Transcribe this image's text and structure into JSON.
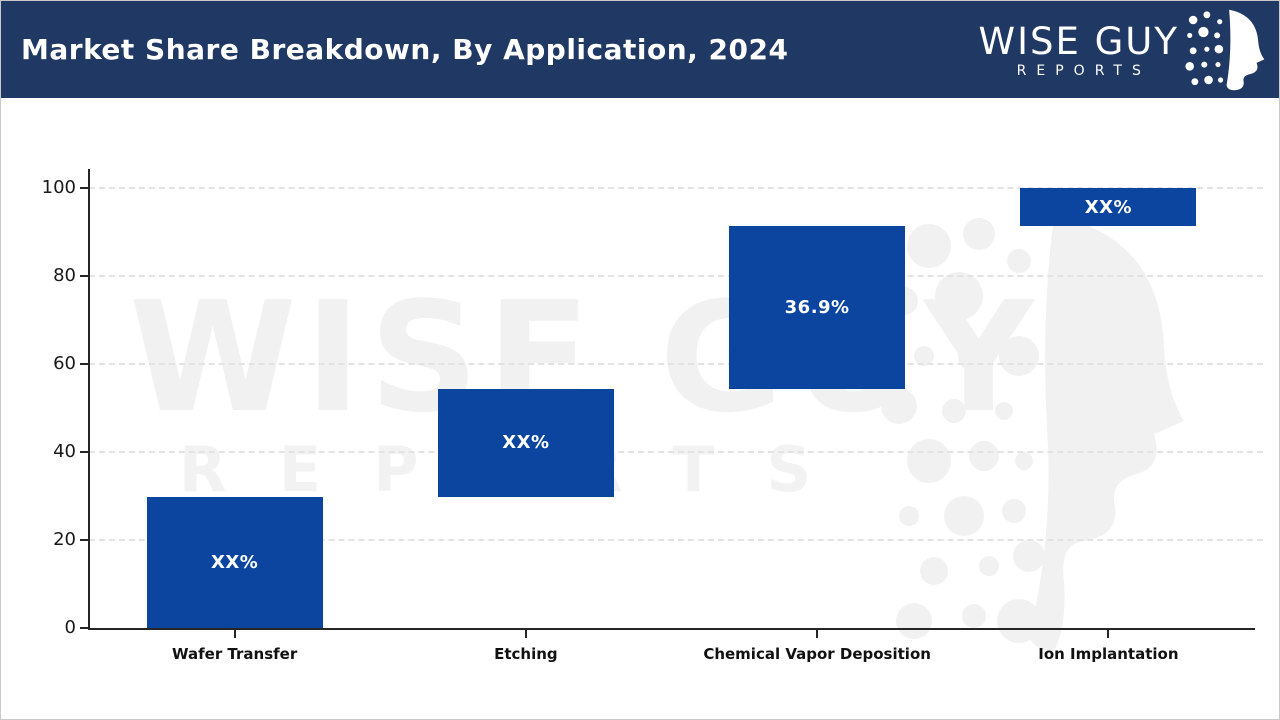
{
  "header": {
    "title": "Market Share Breakdown, By Application, 2024",
    "logo": {
      "line1": "WISE GUY",
      "line2": "REPORTS"
    }
  },
  "watermark": {
    "line1": "WISE GUY",
    "line2": "REPORTS"
  },
  "colors": {
    "header_bg": "#203864",
    "bar": "#0b45a0",
    "grid": "#e3e3e3",
    "axis": "#262626",
    "watermark": "#f1f1f1",
    "bar_label": "#ffffff",
    "title_text": "#ffffff"
  },
  "chart_data": {
    "type": "bar",
    "subtype": "waterfall",
    "title": "Market Share Breakdown, By Application, 2024",
    "categories": [
      "Wafer Transfer",
      "Etching",
      "Chemical Vapor Deposition",
      "Ion Implantation"
    ],
    "segments": [
      {
        "category": "Wafer Transfer",
        "start": 0,
        "end": 29.8,
        "label": "XX%"
      },
      {
        "category": "Etching",
        "start": 29.8,
        "end": 54.4,
        "label": "XX%"
      },
      {
        "category": "Chemical Vapor Deposition",
        "start": 54.4,
        "end": 91.3,
        "label": "36.9%"
      },
      {
        "category": "Ion Implantation",
        "start": 91.3,
        "end": 100,
        "label": "XX%"
      }
    ],
    "yticks": [
      0,
      20,
      40,
      60,
      80,
      100
    ],
    "ylim": [
      0,
      105
    ],
    "xlabel": "",
    "ylabel": "",
    "grid": "horizontal-dashed",
    "legend_position": "none"
  }
}
